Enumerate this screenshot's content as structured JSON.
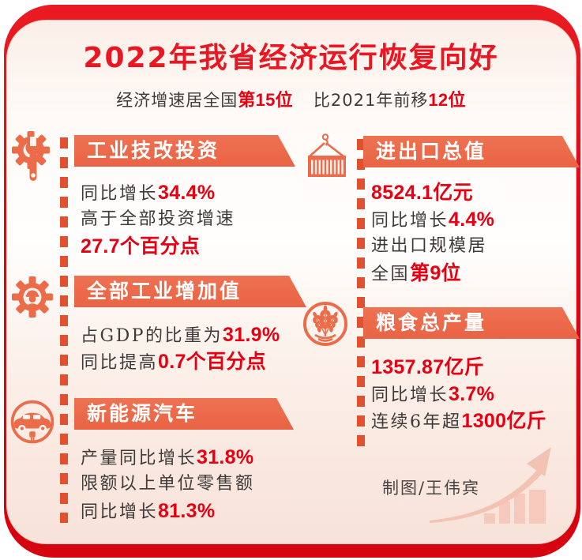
{
  "palette": {
    "frame_red": "#dd0713",
    "banner_orange": "#eb6a4a",
    "dash_orange": "#e2512f",
    "accent_red": "#e60012",
    "text_dark": "#3e3a39",
    "card_bg_bottom": "#f8e2d9"
  },
  "header": {
    "title": "2022年我省经济运行恢复向好",
    "subtitle": [
      {
        "t": "经济增速居全国"
      },
      {
        "t": "第15位",
        "red": true
      },
      {
        "t": "比2021年前移",
        "gap": true
      },
      {
        "t": "12位",
        "red": true
      }
    ]
  },
  "sections": {
    "tech": {
      "banner": "工业技改投资",
      "icon": "gear-wrench-icon",
      "lines": [
        [
          {
            "t": "同比增长"
          },
          {
            "t": "34.4%",
            "red": true
          }
        ],
        [
          {
            "t": "高于全部投资增速"
          }
        ],
        [
          {
            "t": "27.7个百分点",
            "red": true
          }
        ]
      ]
    },
    "industry": {
      "banner": "全部工业增加值",
      "icon": "gear-worker-icon",
      "lines": [
        [
          {
            "t": "占GDP的比重为"
          },
          {
            "t": "31.9%",
            "red": true
          }
        ],
        [
          {
            "t": "同比提高"
          },
          {
            "t": "0.7个百分点",
            "red": true
          }
        ]
      ]
    },
    "ev": {
      "banner": "新能源汽车",
      "icon": "electric-car-icon",
      "lines": [
        [
          {
            "t": "产量同比增长"
          },
          {
            "t": "31.8%",
            "red": true
          }
        ],
        [
          {
            "t": "限额以上单位零售额"
          }
        ],
        [
          {
            "t": "同比增长"
          },
          {
            "t": "81.3%",
            "red": true
          }
        ]
      ]
    },
    "trade": {
      "banner": "进出口总值",
      "icon": "container-crane-icon",
      "lines": [
        [
          {
            "t": "8524.1亿元",
            "red": true
          }
        ],
        [
          {
            "t": "同比增长"
          },
          {
            "t": "4.4%",
            "red": true
          }
        ],
        [
          {
            "t": "进出口规模居"
          }
        ],
        [
          {
            "t": "全国"
          },
          {
            "t": "第9位",
            "red": true
          }
        ]
      ]
    },
    "grain": {
      "banner": "粮食总产量",
      "icon": "wheat-icon",
      "lines": [
        [
          {
            "t": "1357.87亿斤",
            "red": true
          }
        ],
        [
          {
            "t": "同比增长"
          },
          {
            "t": "3.7%",
            "red": true
          }
        ],
        [
          {
            "t": "连续6年超"
          },
          {
            "t": "1300亿斤",
            "red": true
          }
        ]
      ]
    }
  },
  "footer": {
    "credit": "制图/王伟宾"
  }
}
